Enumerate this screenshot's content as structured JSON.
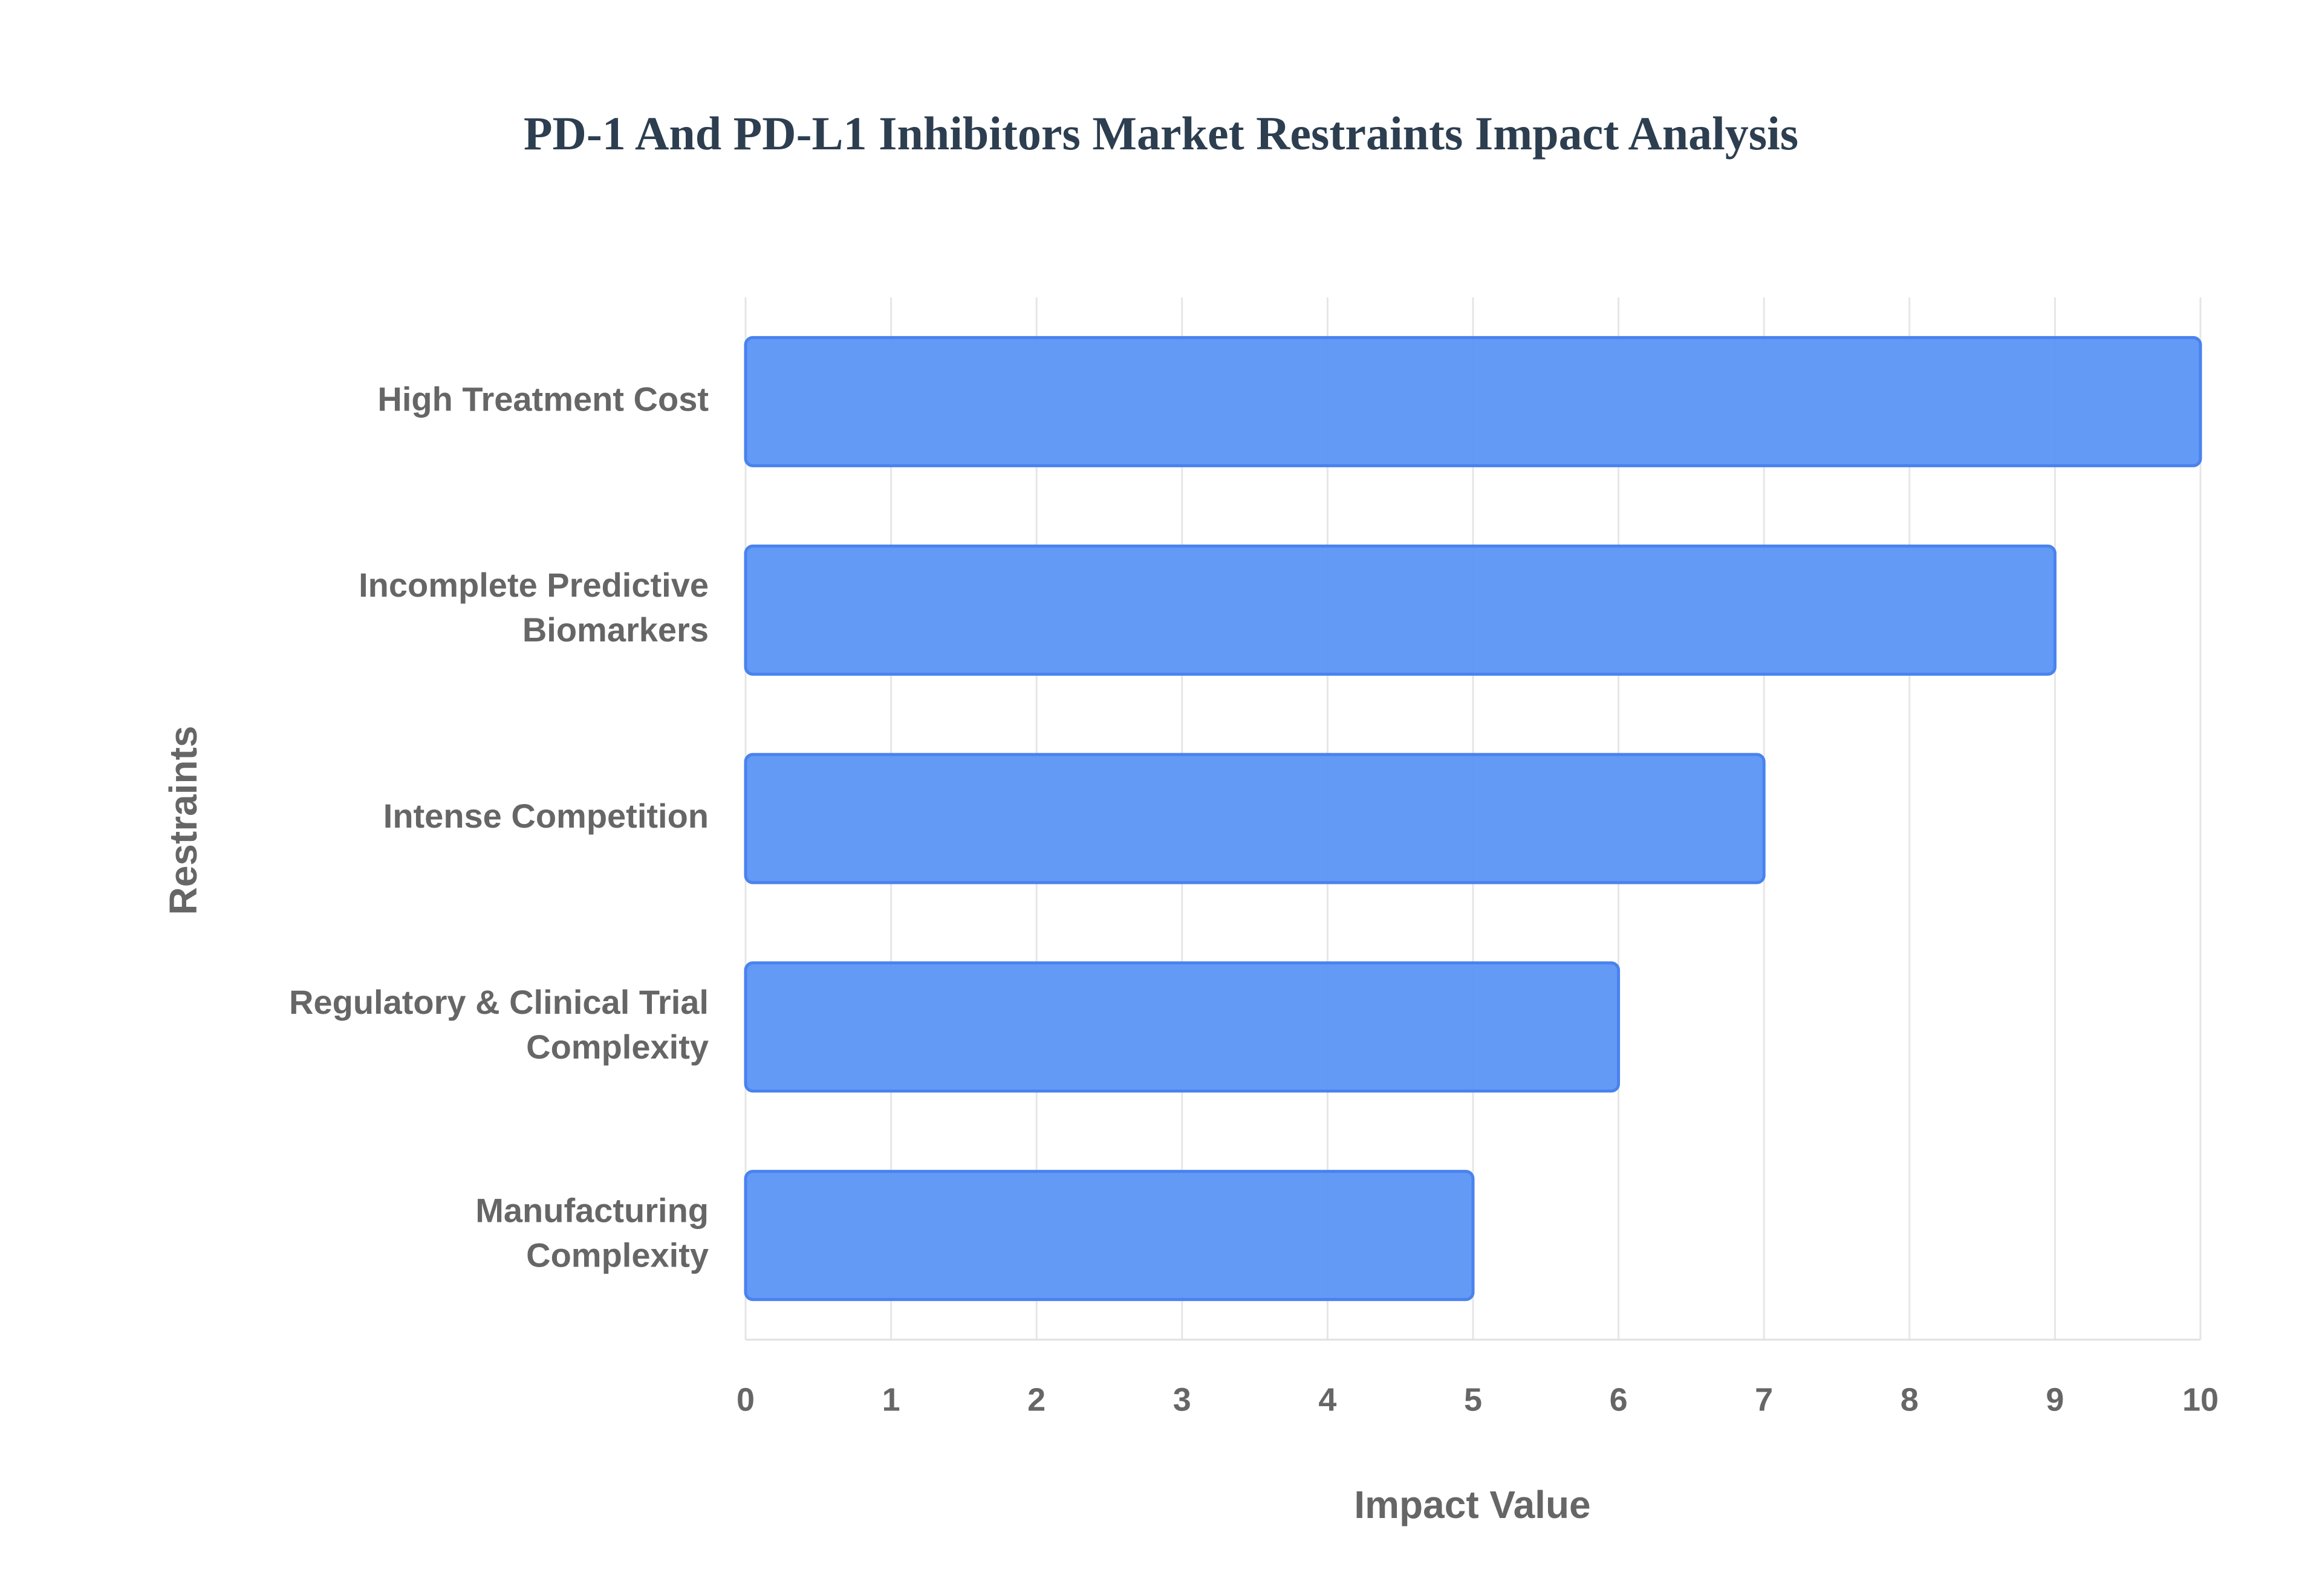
{
  "chart_data": {
    "type": "hbar",
    "title": "PD-1 And PD-L1 Inhibitors Market Restraints Impact Analysis",
    "x_label": "Impact Value",
    "y_label": "Restraints",
    "categories": [
      "High Treatment Cost",
      "Incomplete Predictive Biomarkers",
      "Intense Competition",
      "Regulatory & Clinical Trial Complexity",
      "Manufacturing Complexity"
    ],
    "values": [
      10,
      9,
      7,
      6,
      5
    ],
    "color": "#5b95f5",
    "xlim": [
      0,
      10
    ],
    "xticks": [
      0,
      1,
      2,
      3,
      4,
      5,
      6,
      7,
      8,
      9,
      10
    ],
    "grid": true
  }
}
